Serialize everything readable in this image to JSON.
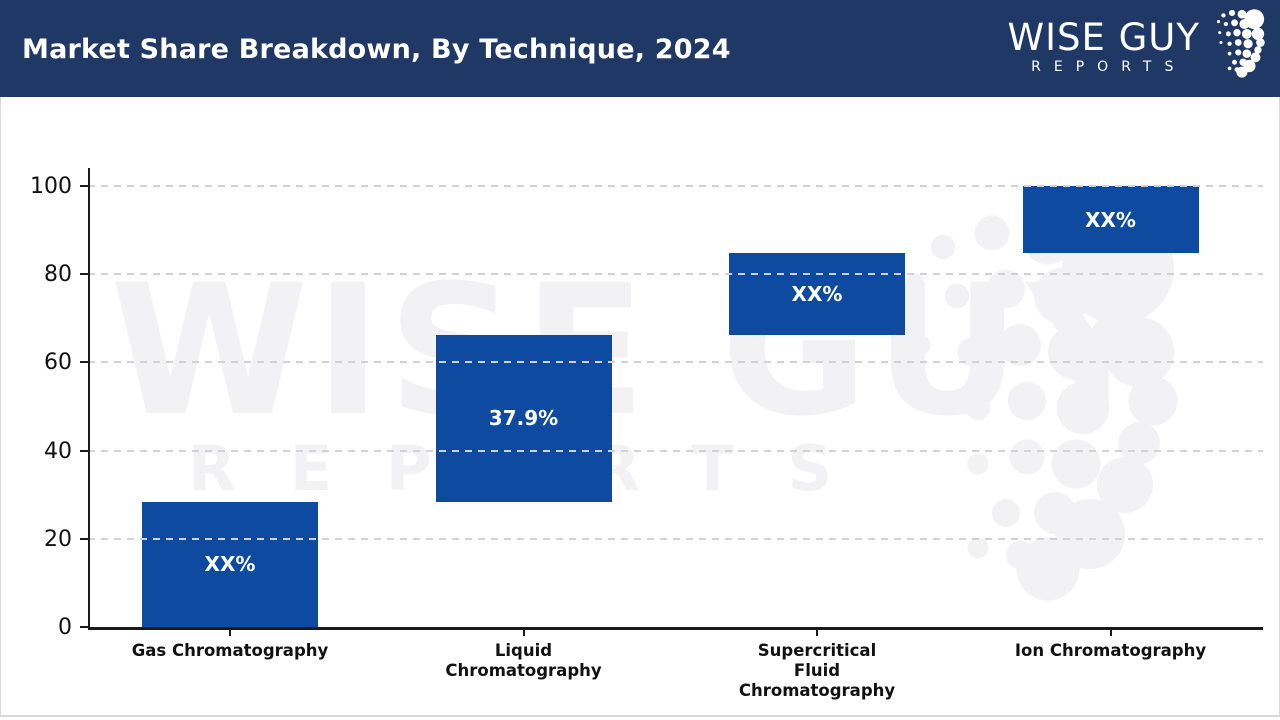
{
  "header": {
    "title": "Market Share Breakdown, By Technique, 2024",
    "bg_color": "#203866",
    "title_color": "#ffffff",
    "logo": {
      "line1": "WISE GUY",
      "line2": "REPORTS"
    }
  },
  "watermark": {
    "line1": "WISE GUY",
    "line2": "REPORTS",
    "color": "#f2f2f4"
  },
  "chart_data": {
    "type": "bar",
    "subtype": "waterfall",
    "title": "Market Share Breakdown, By Technique, 2024",
    "categories": [
      [
        "Gas Chromatography"
      ],
      [
        "Liquid",
        "Chromatography"
      ],
      [
        "Supercritical",
        "Fluid",
        "Chromatography"
      ],
      [
        "Ion Chromatography"
      ]
    ],
    "segments": [
      {
        "label": "XX%",
        "start": 0,
        "end": 28.4
      },
      {
        "label": "37.9%",
        "start": 28.4,
        "end": 66.3
      },
      {
        "label": "XX%",
        "start": 66.3,
        "end": 84.7
      },
      {
        "label": "XX%",
        "start": 84.7,
        "end": 100
      }
    ],
    "xlabel": "",
    "ylabel": "",
    "ylim": [
      0,
      100
    ],
    "yticks": [
      0,
      20,
      40,
      60,
      80,
      100
    ],
    "grid": "horizontal dashed",
    "bar_color": "#0d4aa0",
    "grid_color": "#d2d2d2",
    "axis_color": "#1a1a1a"
  }
}
